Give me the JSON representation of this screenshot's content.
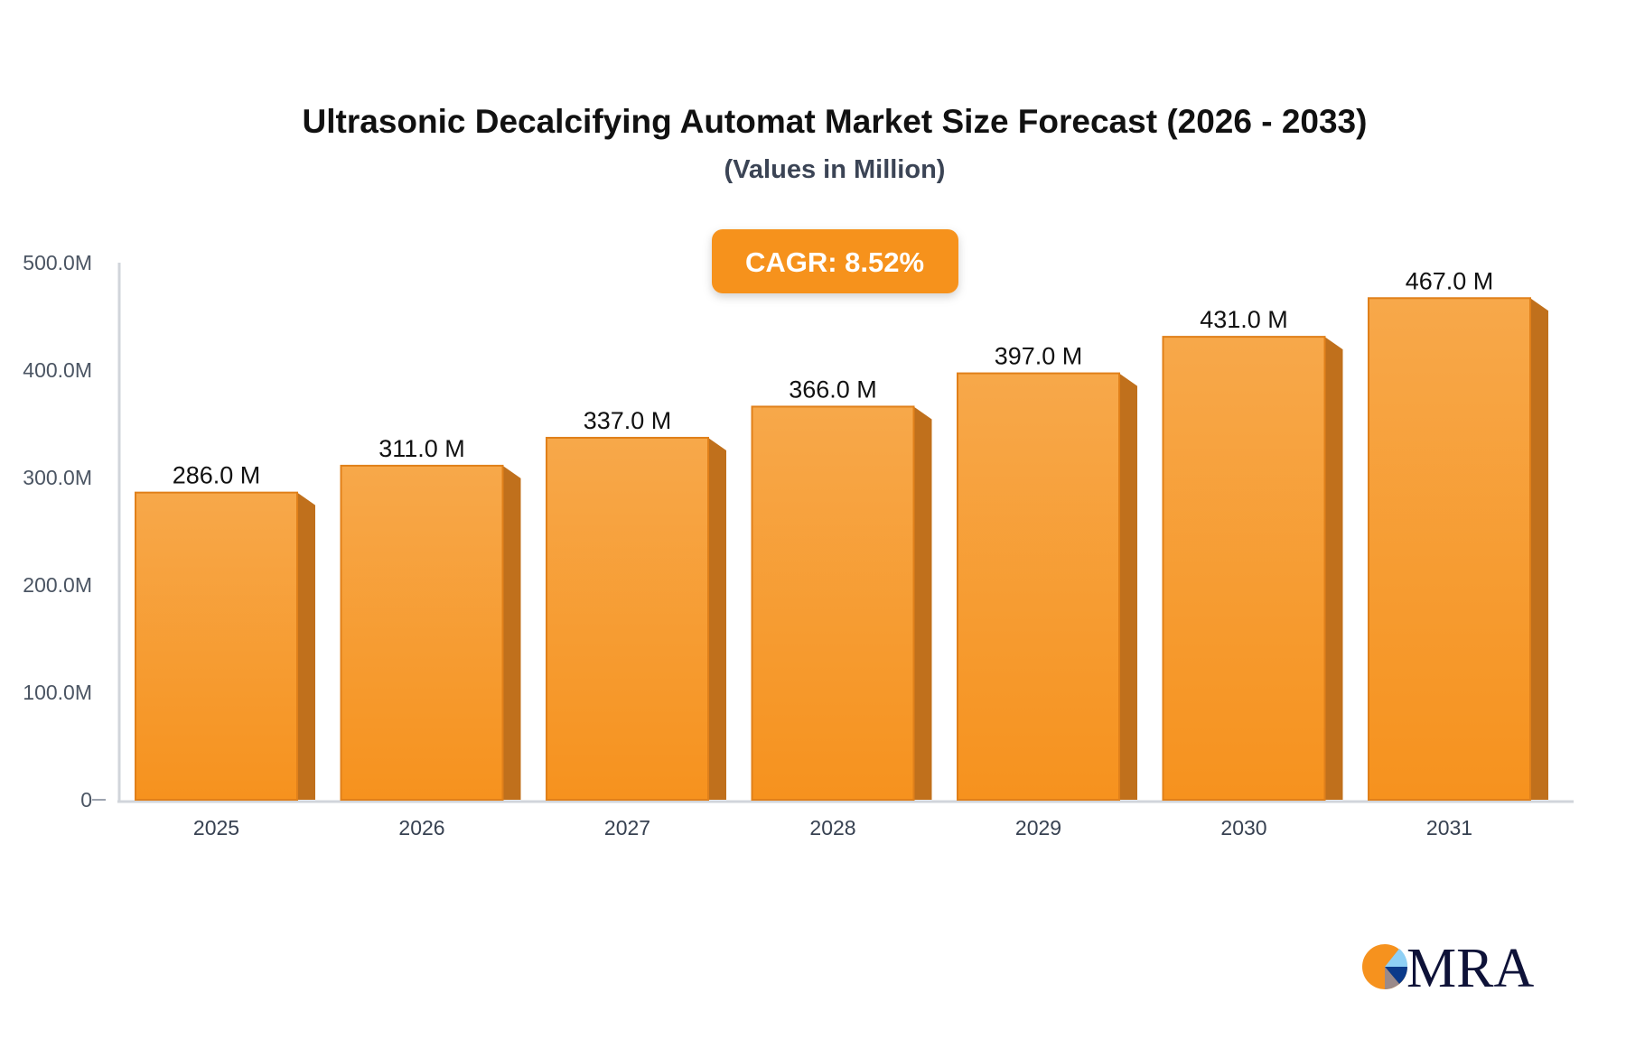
{
  "chart_data": {
    "type": "bar",
    "title": "Ultrasonic Decalcifying Automat Market Size Forecast (2026 - 2033)",
    "subtitle": "(Values in Million)",
    "categories": [
      "2025",
      "2026",
      "2027",
      "2028",
      "2029",
      "2030",
      "2031"
    ],
    "values": [
      286.0,
      311.0,
      337.0,
      366.0,
      397.0,
      431.0,
      467.0
    ],
    "data_labels": [
      "286.0 M",
      "311.0 M",
      "337.0 M",
      "366.0 M",
      "397.0 M",
      "431.0 M",
      "467.0 M"
    ],
    "yticks": [
      0,
      100,
      200,
      300,
      400,
      500
    ],
    "ytick_labels": [
      "0",
      "100.0M",
      "200.0M",
      "300.0M",
      "400.0M",
      "500.0M"
    ],
    "ylim": [
      0,
      500
    ],
    "xlabel": "",
    "ylabel": "",
    "grid": false,
    "legend": "none",
    "annotation": "CAGR: 8.52%",
    "colors": {
      "bar_top": "#f7a84a",
      "bar_bottom": "#f6921e",
      "bar_side": "#c0701c",
      "badge": "#f6921e",
      "axis": "#d1d5db"
    }
  },
  "logo": {
    "text": "MRA"
  }
}
